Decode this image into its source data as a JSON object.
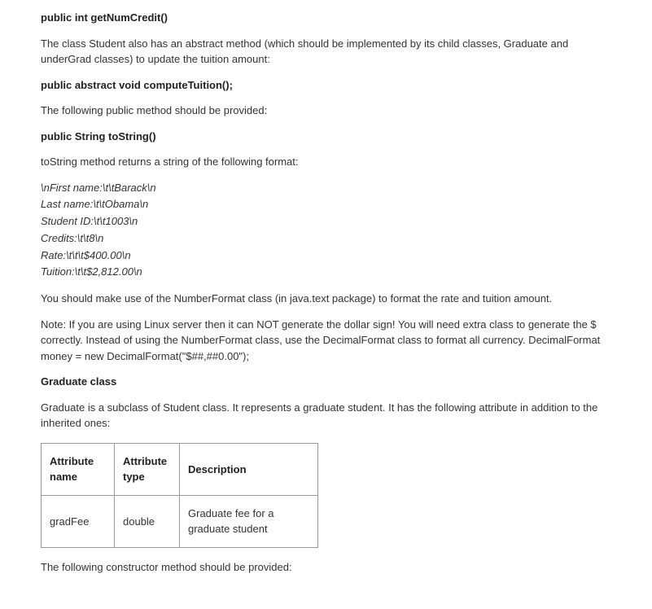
{
  "headings": {
    "getNumCredit": "public int getNumCredit()",
    "computeTuition": "public abstract void computeTuition();",
    "toString": "public String toString()",
    "graduateClass": "Graduate class"
  },
  "paragraphs": {
    "abstractIntro": "The class Student also has an abstract method (which should be implemented by its child classes, Graduate and underGrad classes) to update the tuition amount:",
    "publicMethodIntro": "The following public method should be provided:",
    "toStringFormat": "toString method returns a string of the following format:",
    "numberFormat": "You should make use of the NumberFormat class (in java.text package) to format the rate and tuition amount.",
    "linuxNote": "Note: If you are using Linux server then it can NOT generate the dollar sign! You will need extra class to generate the $ correctly. Instead of using the NumberFormat class, use the DecimalFormat class to format all currency. DecimalFormat money = new DecimalFormat(\"$##,##0.00\");",
    "graduateIntro": "Graduate is a subclass of Student class. It represents a graduate student. It has the following attribute in addition to the inherited ones:",
    "constructorIntro": "The following constructor method should be provided:"
  },
  "formatBlock": {
    "line1": "\\nFirst name:\\t\\tBarack\\n",
    "line2": "Last name:\\t\\tObama\\n",
    "line3": "Student ID:\\t\\t1003\\n",
    "line4": "Credits:\\t\\t8\\n",
    "line5": "Rate:\\t\\t\\t$400.00\\n",
    "line6": "Tuition:\\t\\t$2,812.00\\n"
  },
  "table": {
    "headers": {
      "name": "Attribute name",
      "type": "Attribute type",
      "desc": "Description"
    },
    "row1": {
      "name": "gradFee",
      "type": "double",
      "desc": "Graduate fee for a graduate student"
    }
  }
}
